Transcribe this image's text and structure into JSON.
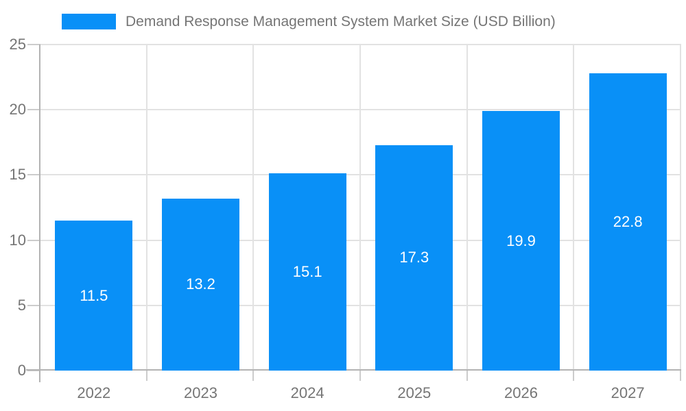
{
  "chart_data": {
    "type": "bar",
    "title": "Demand Response Management System Market Size (USD Billion)",
    "categories": [
      "2022",
      "2023",
      "2024",
      "2025",
      "2026",
      "2027"
    ],
    "values": [
      11.5,
      13.2,
      15.1,
      17.3,
      19.9,
      22.8
    ],
    "value_labels": [
      "11.5",
      "13.2",
      "15.1",
      "17.3",
      "19.9",
      "22.8"
    ],
    "xlabel": "",
    "ylabel": "",
    "ylim": [
      0,
      25
    ],
    "yticks": [
      0,
      5,
      10,
      15,
      20,
      25
    ],
    "grid": true,
    "legend_position": "top",
    "value_label_position": "inside-center"
  },
  "legend": {
    "label": "Demand Response Management System Market Size (USD Billion)"
  },
  "colors": {
    "bar": "#0990F7",
    "bar_label": "#FFFFFF",
    "grid": "#E2E2E2",
    "axis_line": "#B3B3B3",
    "tick": "#CCCCCC",
    "text": "#757575",
    "background": "#FFFFFF"
  }
}
